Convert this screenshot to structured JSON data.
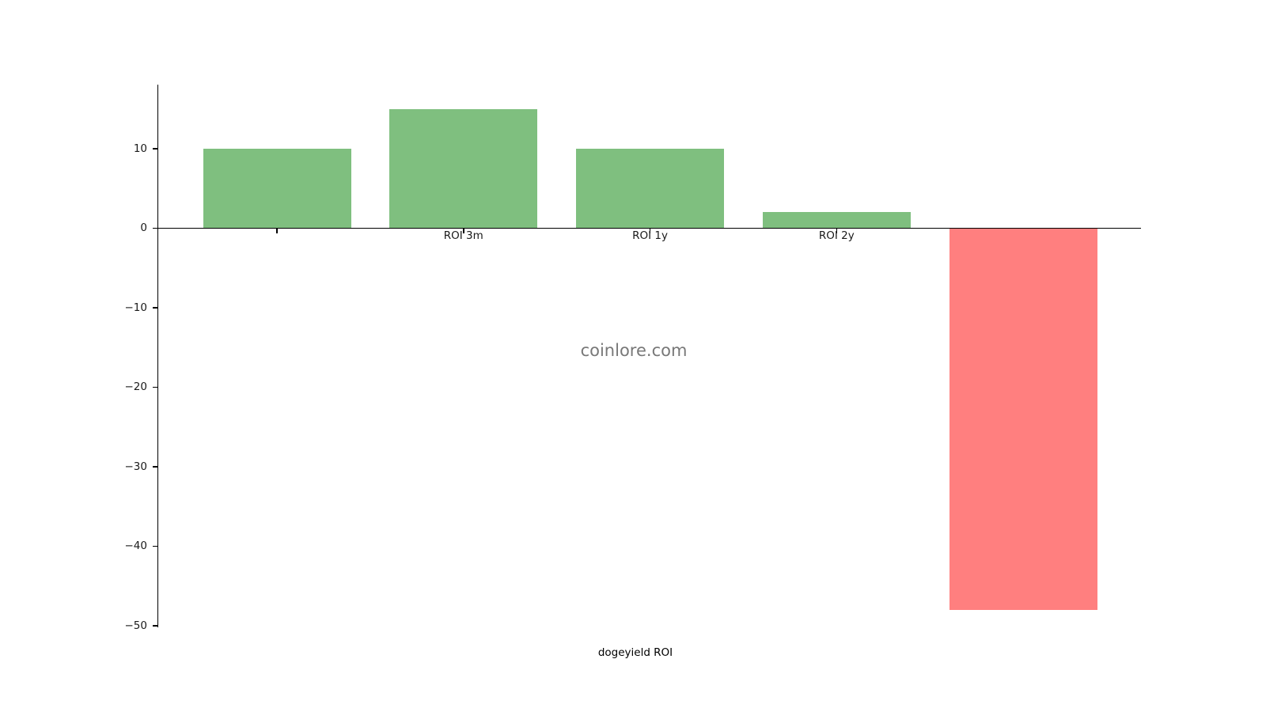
{
  "page": {
    "background": "#ffffff"
  },
  "watermark": {
    "text": "coinlore.com",
    "color": "#787878"
  },
  "chart_data": {
    "type": "bar",
    "title": "",
    "xlabel": "dogeyield ROI",
    "ylabel": "",
    "categories": [
      "",
      "ROI 3m",
      "ROI 1y",
      "ROI 2y",
      ""
    ],
    "values": [
      10,
      15,
      10,
      2,
      -48
    ],
    "bar_colors": {
      "positive": "#7fbf7f",
      "negative": "#ff7f7f"
    },
    "yticks": [
      {
        "value": 10,
        "label": "10"
      },
      {
        "value": 0,
        "label": "0"
      },
      {
        "value": -10,
        "label": "−10"
      },
      {
        "value": -20,
        "label": "−20"
      },
      {
        "value": -30,
        "label": "−30"
      },
      {
        "value": -40,
        "label": "−40"
      },
      {
        "value": -50,
        "label": "−50"
      }
    ],
    "ylim": [
      -50.3,
      18.1
    ],
    "grid": false,
    "legend": "none",
    "axis_color": "#000000"
  }
}
